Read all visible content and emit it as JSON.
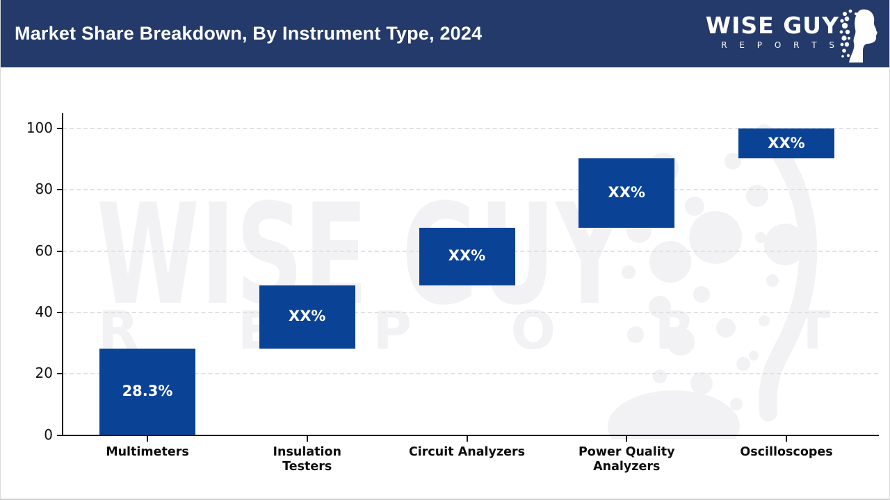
{
  "header": {
    "title": "Market Share Breakdown, By Instrument Type, 2024",
    "logo_line1": "WISE GUY",
    "logo_line2": "R E P O R T S",
    "background_color": "#243a6a"
  },
  "watermark": {
    "line1": "WISE GUY",
    "line2": "R E P O R T S"
  },
  "chart_data": {
    "type": "bar",
    "subtype": "waterfall",
    "title": "Market Share Breakdown, By Instrument Type, 2024",
    "categories": [
      "Multimeters",
      "Insulation Testers",
      "Circuit Analyzers",
      "Power Quality Analyzers",
      "Oscilloscopes"
    ],
    "segments": [
      {
        "category": "Multimeters",
        "start": 0,
        "end": 28.3,
        "label": "28.3%"
      },
      {
        "category": "Insulation Testers",
        "start": 28.3,
        "end": 48.9,
        "label": "XX%"
      },
      {
        "category": "Circuit Analyzers",
        "start": 48.9,
        "end": 67.7,
        "label": "XX%"
      },
      {
        "category": "Power Quality Analyzers",
        "start": 67.7,
        "end": 90.2,
        "label": "XX%"
      },
      {
        "category": "Oscilloscopes",
        "start": 90.2,
        "end": 100,
        "label": "XX%"
      }
    ],
    "yticks": [
      0,
      20,
      40,
      60,
      80,
      100
    ],
    "ylim": [
      0,
      105
    ],
    "xlabel": "",
    "ylabel": "",
    "grid": "horizontal-dashed",
    "legend": "none",
    "bar_color": "#0a4296",
    "bar_label_color": "#ffffff",
    "axis_color": "#1a1a1a"
  }
}
